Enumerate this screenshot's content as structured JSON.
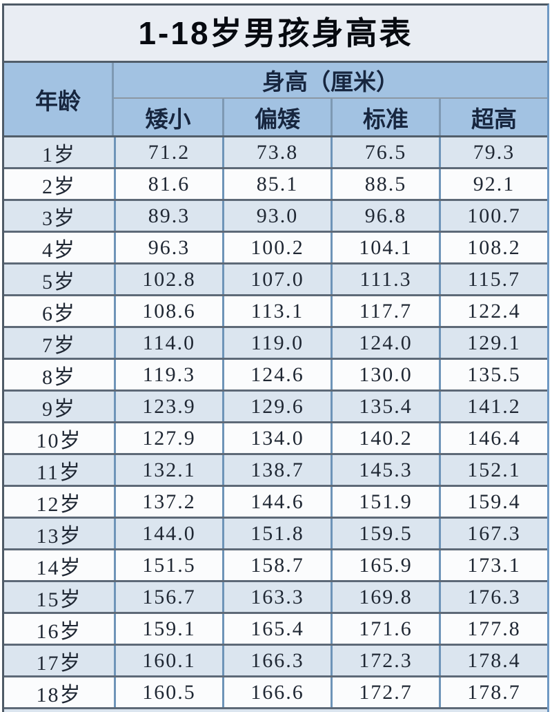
{
  "title": "1-18岁男孩身高表",
  "table": {
    "row_header": "年龄",
    "group_header": "身高（厘米）",
    "columns": [
      "矮小",
      "偏矮",
      "标准",
      "超高"
    ],
    "rows": [
      {
        "age": "1岁",
        "values": [
          "71.2",
          "73.8",
          "76.5",
          "79.3"
        ]
      },
      {
        "age": "2岁",
        "values": [
          "81.6",
          "85.1",
          "88.5",
          "92.1"
        ]
      },
      {
        "age": "3岁",
        "values": [
          "89.3",
          "93.0",
          "96.8",
          "100.7"
        ]
      },
      {
        "age": "4岁",
        "values": [
          "96.3",
          "100.2",
          "104.1",
          "108.2"
        ]
      },
      {
        "age": "5岁",
        "values": [
          "102.8",
          "107.0",
          "111.3",
          "115.7"
        ]
      },
      {
        "age": "6岁",
        "values": [
          "108.6",
          "113.1",
          "117.7",
          "122.4"
        ]
      },
      {
        "age": "7岁",
        "values": [
          "114.0",
          "119.0",
          "124.0",
          "129.1"
        ]
      },
      {
        "age": "8岁",
        "values": [
          "119.3",
          "124.6",
          "130.0",
          "135.5"
        ]
      },
      {
        "age": "9岁",
        "values": [
          "123.9",
          "129.6",
          "135.4",
          "141.2"
        ]
      },
      {
        "age": "10岁",
        "values": [
          "127.9",
          "134.0",
          "140.2",
          "146.4"
        ]
      },
      {
        "age": "11岁",
        "values": [
          "132.1",
          "138.7",
          "145.3",
          "152.1"
        ]
      },
      {
        "age": "12岁",
        "values": [
          "137.2",
          "144.6",
          "151.9",
          "159.4"
        ]
      },
      {
        "age": "13岁",
        "values": [
          "144.0",
          "151.8",
          "159.5",
          "167.3"
        ]
      },
      {
        "age": "14岁",
        "values": [
          "151.5",
          "158.7",
          "165.9",
          "173.1"
        ]
      },
      {
        "age": "15岁",
        "values": [
          "156.7",
          "163.3",
          "169.8",
          "176.3"
        ]
      },
      {
        "age": "16岁",
        "values": [
          "159.1",
          "165.4",
          "171.6",
          "177.8"
        ]
      },
      {
        "age": "17岁",
        "values": [
          "160.1",
          "166.3",
          "172.3",
          "178.4"
        ]
      },
      {
        "age": "18岁",
        "values": [
          "160.5",
          "166.6",
          "172.7",
          "178.7"
        ]
      }
    ]
  },
  "colors": {
    "title_bg": "#e9edf3",
    "header_bg": "#a2c2e2",
    "header_text": "#17263f",
    "row_alt_bg": "#dbe5ef",
    "row_bg": "#fbfcfd",
    "h_border": "#5d6977",
    "v_border": "#6e94b8",
    "outer_border": "#4e5a66"
  },
  "chart_data": {
    "type": "table",
    "title": "1-18岁男孩身高表",
    "row_header": "年龄",
    "group_header": "身高（厘米）",
    "categories": [
      "1岁",
      "2岁",
      "3岁",
      "4岁",
      "5岁",
      "6岁",
      "7岁",
      "8岁",
      "9岁",
      "10岁",
      "11岁",
      "12岁",
      "13岁",
      "14岁",
      "15岁",
      "16岁",
      "17岁",
      "18岁"
    ],
    "series": [
      {
        "name": "矮小",
        "values": [
          71.2,
          81.6,
          89.3,
          96.3,
          102.8,
          108.6,
          114.0,
          119.3,
          123.9,
          127.9,
          132.1,
          137.2,
          144.0,
          151.5,
          156.7,
          159.1,
          160.1,
          160.5
        ]
      },
      {
        "name": "偏矮",
        "values": [
          73.8,
          85.1,
          93.0,
          100.2,
          107.0,
          113.1,
          119.0,
          124.6,
          129.6,
          134.0,
          138.7,
          144.6,
          151.8,
          158.7,
          163.3,
          165.4,
          166.3,
          166.6
        ]
      },
      {
        "name": "标准",
        "values": [
          76.5,
          88.5,
          96.8,
          104.1,
          111.3,
          117.7,
          124.0,
          130.0,
          135.4,
          140.2,
          145.3,
          151.9,
          159.5,
          165.9,
          169.8,
          171.6,
          172.3,
          172.7
        ]
      },
      {
        "name": "超高",
        "values": [
          79.3,
          92.1,
          100.7,
          108.2,
          115.7,
          122.4,
          129.1,
          135.5,
          141.2,
          146.4,
          152.1,
          159.4,
          167.3,
          173.1,
          176.3,
          177.8,
          178.4,
          178.7
        ]
      }
    ],
    "unit": "cm"
  }
}
